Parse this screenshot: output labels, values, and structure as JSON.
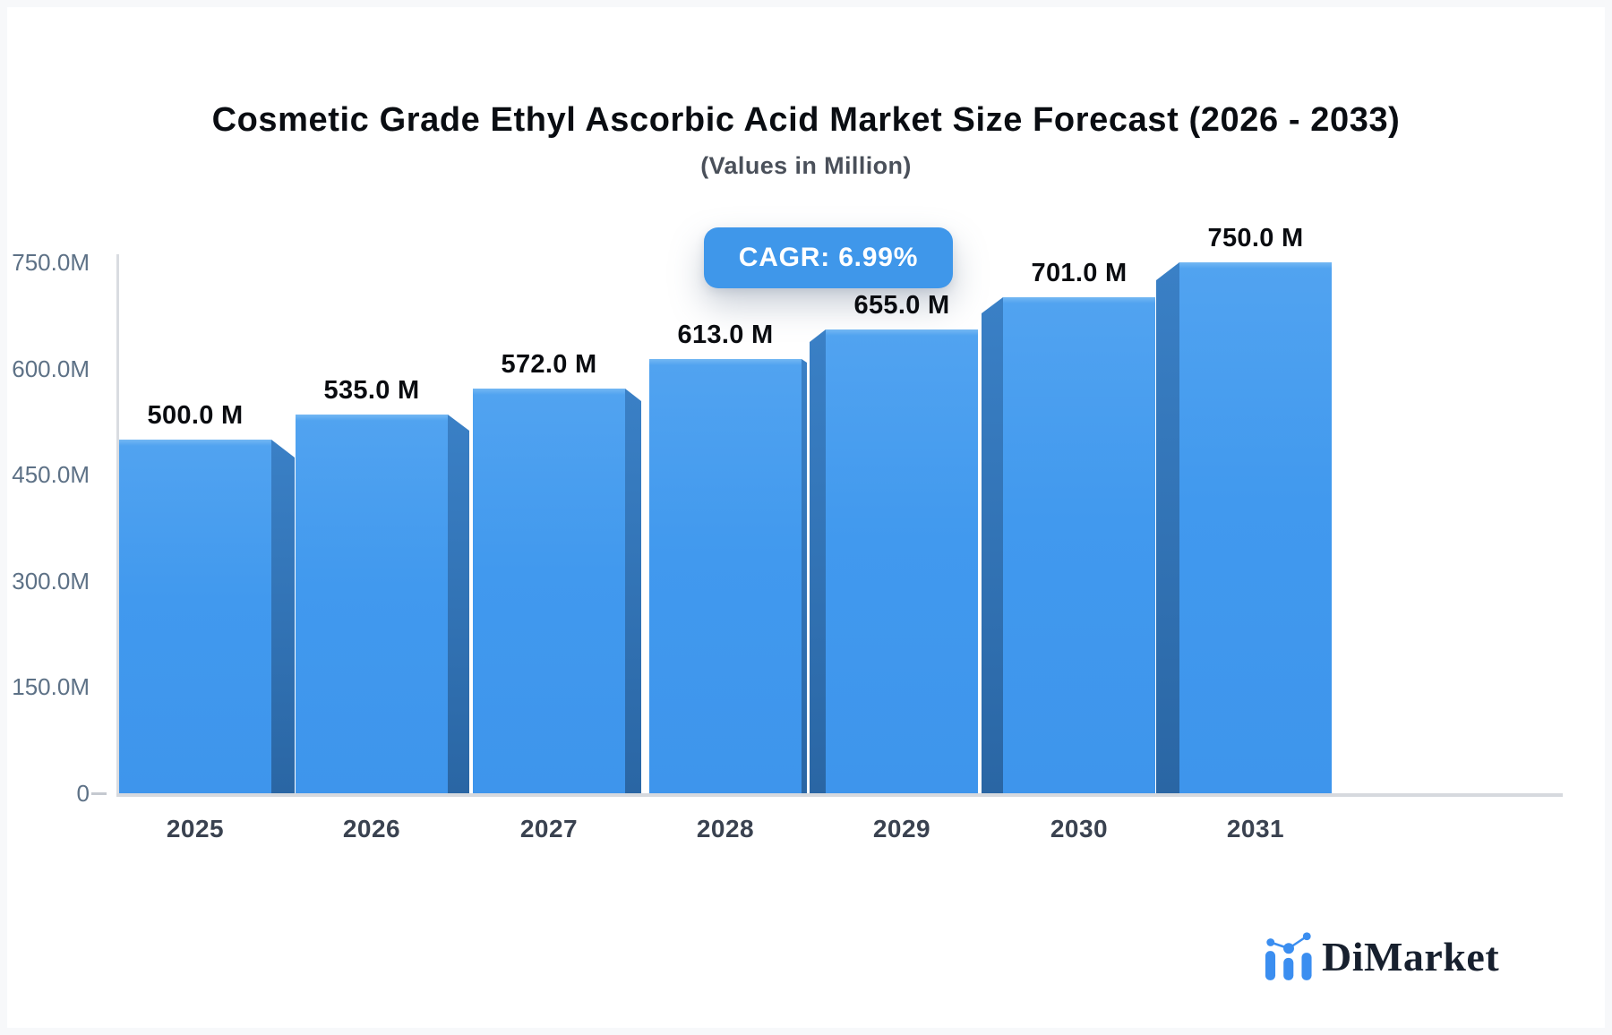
{
  "title": "Cosmetic Grade Ethyl Ascorbic Acid Market Size Forecast (2026 - 2033)",
  "subtitle": "(Values in Million)",
  "cagr_badge": "CAGR: 6.99%",
  "chart_data": {
    "type": "bar",
    "title": "Cosmetic Grade Ethyl Ascorbic Acid Market Size Forecast (2026 - 2033)",
    "subtitle": "(Values in Million)",
    "xlabel": "",
    "ylabel": "",
    "categories": [
      "2025",
      "2026",
      "2027",
      "2028",
      "2029",
      "2030",
      "2031"
    ],
    "values": [
      500.0,
      535.0,
      572.0,
      613.0,
      655.0,
      701.0,
      750.0
    ],
    "bar_labels": [
      "500.0 M",
      "535.0 M",
      "572.0 M",
      "613.0 M",
      "655.0 M",
      "701.0 M",
      "750.0 M"
    ],
    "y_ticks": [
      {
        "value": 0,
        "label": "0"
      },
      {
        "value": 150,
        "label": "150.0M"
      },
      {
        "value": 300,
        "label": "300.0M"
      },
      {
        "value": 450,
        "label": "450.0M"
      },
      {
        "value": 600,
        "label": "600.0M"
      },
      {
        "value": 750,
        "label": "750.0M"
      }
    ],
    "ylim": [
      0,
      750
    ],
    "grid": false,
    "legend": "none",
    "style": "3d-columns",
    "bar_face_color": "#4199ee",
    "bar_side_color": "#2e6fb0",
    "axis_line_color": "#d9dce1",
    "axis_text_color": "#5d7186"
  },
  "logo": {
    "text": "DiMarket",
    "icon": "bar-line-chart-icon",
    "icon_color": "#3b8ef0",
    "text_color": "#17202e"
  },
  "colors": {
    "accent": "#3f97ea",
    "badge_text": "#ffffff",
    "title_text": "#0a0d12",
    "subtitle_text": "#4a505a",
    "value_label_text": "#0a0c10",
    "x_label_text": "#3a4250",
    "background": "#ffffff",
    "frame": "#f7f8fa"
  }
}
